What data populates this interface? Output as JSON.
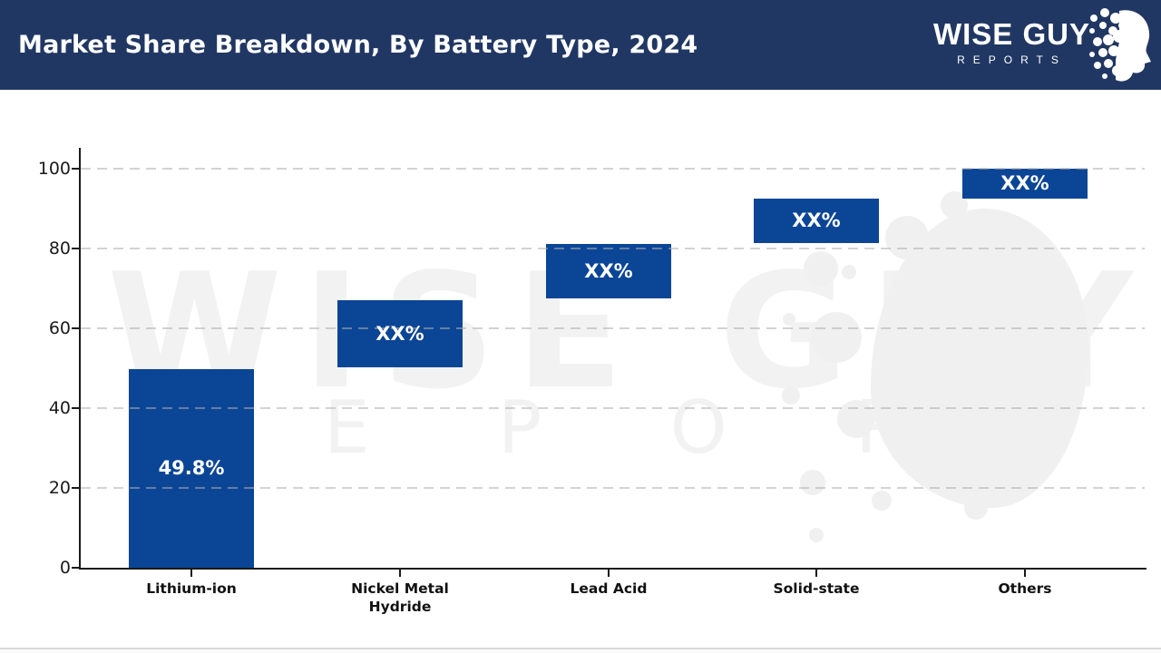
{
  "header": {
    "title": "Market Share Breakdown, By Battery Type, 2024",
    "logo_line1": "WISE GUY",
    "logo_line2": "REPORTS"
  },
  "watermark": {
    "line1": "WISE GUY",
    "line2": "REPORTS"
  },
  "colors": {
    "header_bg": "#213763",
    "bar_blue": "#0b4596",
    "bar_label_text": "#ffffff",
    "gridline": "#d9d9d9",
    "axis": "#1a1a1a",
    "watermark": "#f2f2f2"
  },
  "chart_data": {
    "type": "bar",
    "subtype": "waterfall-stacked-breakdown",
    "title": "Market Share Breakdown, By Battery Type, 2024",
    "xlabel": "",
    "ylabel": "",
    "categories": [
      "Lithium-ion",
      "Nickel Metal Hydride",
      "Lead Acid",
      "Solid-state",
      "Others"
    ],
    "segments": [
      {
        "category": "Lithium-ion",
        "start": 0,
        "end": 49.8,
        "label": "49.8%"
      },
      {
        "category": "Nickel Metal Hydride",
        "start": 50.2,
        "end": 67.0,
        "label": "XX%"
      },
      {
        "category": "Lead Acid",
        "start": 67.5,
        "end": 81.1,
        "label": "XX%"
      },
      {
        "category": "Solid-state",
        "start": 81.4,
        "end": 92.5,
        "label": "XX%"
      },
      {
        "category": "Others",
        "start": 92.6,
        "end": 100.0,
        "label": "XX%"
      }
    ],
    "y_ticks": [
      0,
      20,
      40,
      60,
      80,
      100
    ],
    "ylim": [
      0,
      105
    ],
    "grid": "horizontal-dashed",
    "grid_above_bars": true,
    "legend": "none"
  }
}
